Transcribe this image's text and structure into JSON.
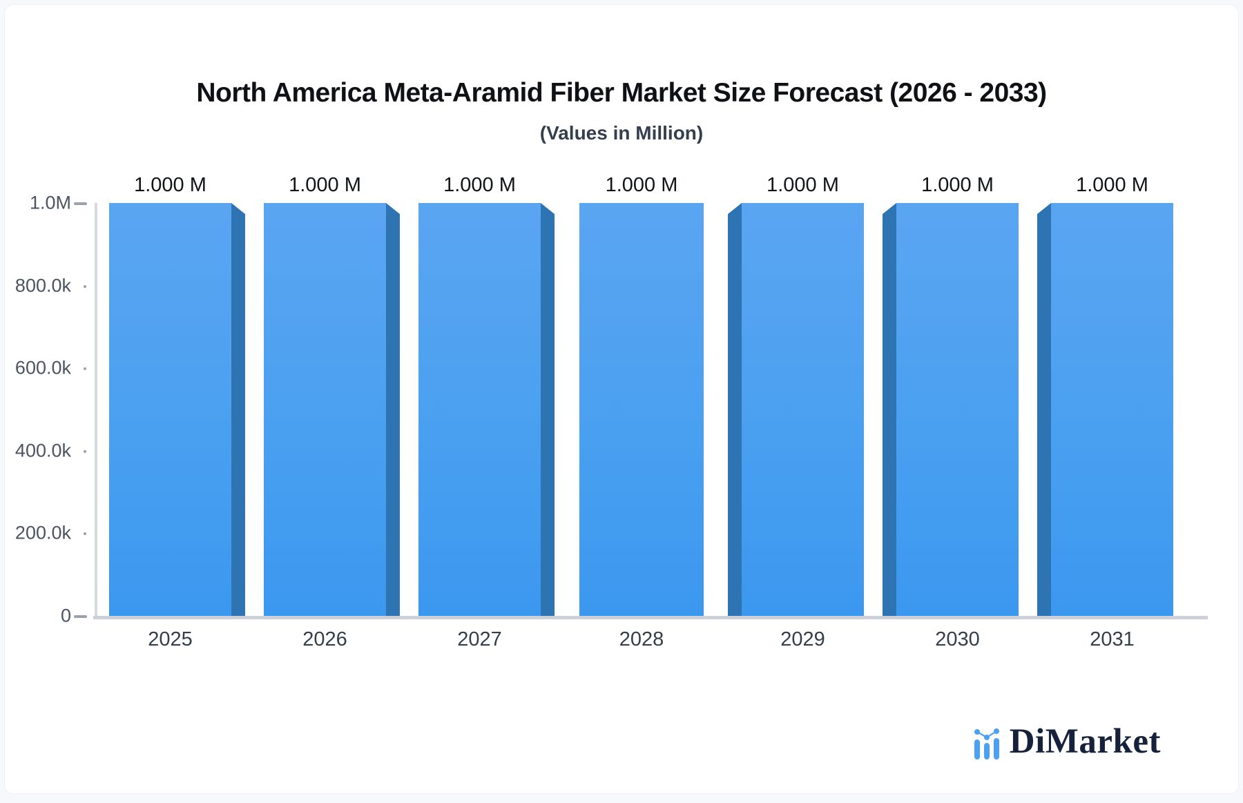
{
  "title": "North America Meta-Aramid Fiber Market Size Forecast (2026 - 2033)",
  "subtitle": "(Values in Million)",
  "chart_data": {
    "type": "bar",
    "title": "North America Meta-Aramid Fiber Market Size Forecast (2026 - 2033)",
    "subtitle": "(Values in Million)",
    "categories": [
      "2025",
      "2026",
      "2027",
      "2028",
      "2029",
      "2030",
      "2031"
    ],
    "values": [
      1000000,
      1000000,
      1000000,
      1000000,
      1000000,
      1000000,
      1000000
    ],
    "value_labels": [
      "1.000 M",
      "1.000 M",
      "1.000 M",
      "1.000 M",
      "1.000 M",
      "1.000 M",
      "1.000 M"
    ],
    "xlabel": "",
    "ylabel": "",
    "ylim": [
      0,
      1000000
    ],
    "y_ticks": [
      {
        "value": 1000000,
        "label": "1.0M",
        "tick": "dash"
      },
      {
        "value": 800000,
        "label": "800.0k",
        "tick": "dot"
      },
      {
        "value": 600000,
        "label": "600.0k",
        "tick": "dot"
      },
      {
        "value": 400000,
        "label": "400.0k",
        "tick": "dot"
      },
      {
        "value": 200000,
        "label": "200.0k",
        "tick": "dot"
      },
      {
        "value": 0,
        "label": "0",
        "tick": "dash"
      }
    ],
    "grid": false,
    "legend": false,
    "colors": {
      "bar_gradient_top": "#5aa5f2",
      "bar_gradient_bottom": "#3b98ef",
      "bar_edge": "#2e74b3",
      "axis_line": "#d6dae0",
      "baseline": "#ccd1d9",
      "tick_label": "#4a5462",
      "value_label": "#111417"
    }
  },
  "logo": {
    "text": "DiMarket",
    "icon": "dimarket-bar-chart-logo-icon",
    "accent_color": "#4aa0f5",
    "text_color": "#16223c"
  }
}
